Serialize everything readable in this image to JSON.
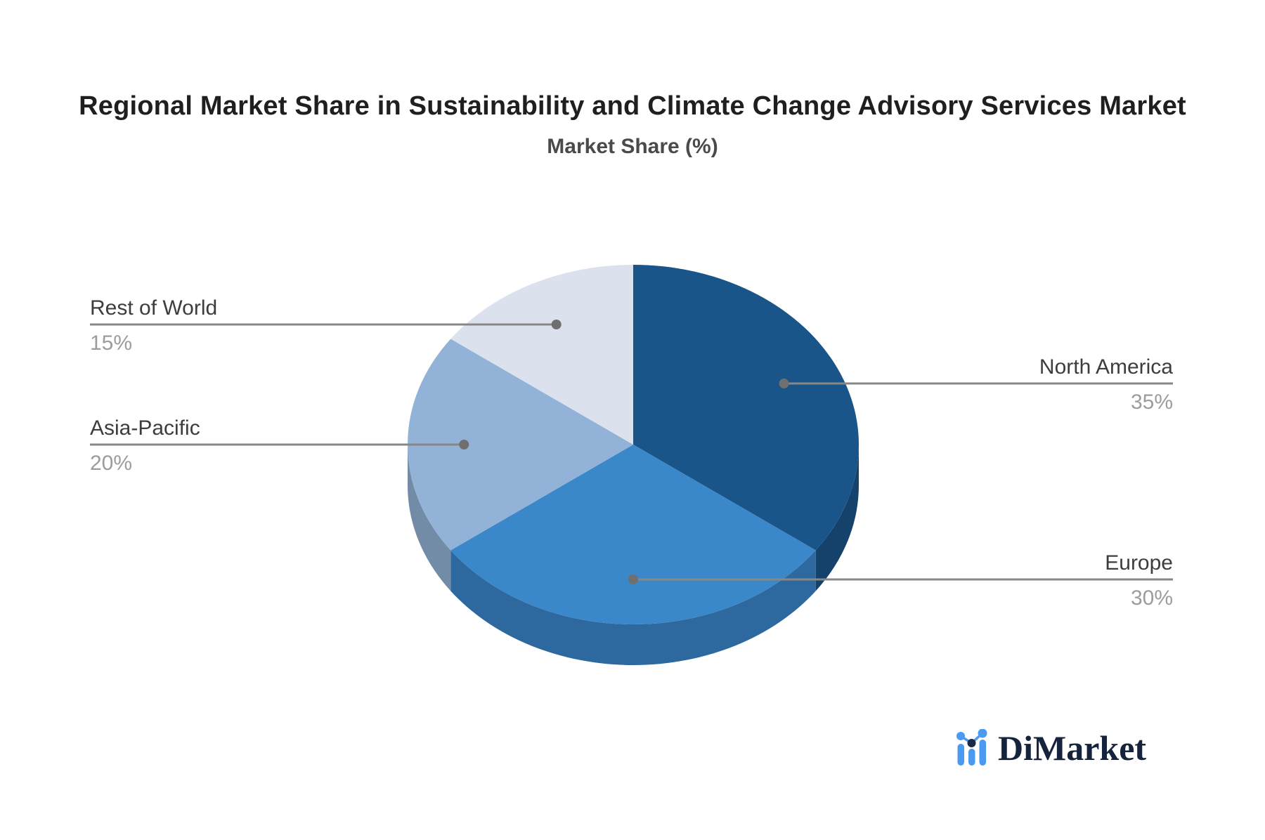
{
  "title": "Regional Market Share in Sustainability and Climate Change Advisory Services Market",
  "subtitle": "Market Share (%)",
  "logo": {
    "name": "DiMarket",
    "icon": "dimarket-bar-chart-logo-icon",
    "icon_color": "#4a9af2",
    "icon_accent_color": "#1b2a49",
    "text_color": "#16233c"
  },
  "chart_data": {
    "type": "pie",
    "style": "3d",
    "title": "Regional Market Share in Sustainability and Climate Change Advisory Services Market",
    "subtitle": "Market Share (%)",
    "unit": "%",
    "direction": "clockwise",
    "start_angle_deg": 0,
    "categories": [
      "North America",
      "Europe",
      "Asia-Pacific",
      "Rest of World"
    ],
    "values": [
      35,
      30,
      20,
      15
    ],
    "percent_labels": [
      "35%",
      "30%",
      "20%",
      "15%"
    ],
    "colors": [
      "#1a5589",
      "#3a87ca",
      "#92b3d7",
      "#dbe2ee"
    ],
    "label_sides": [
      "right",
      "right",
      "left",
      "left"
    ],
    "label_line_color": "#878787",
    "label_dot_color": "#6f6f6f",
    "label_name_color": "#3d3d3d",
    "label_percent_color": "#9c9c9c",
    "legend": "none",
    "grid": false
  }
}
